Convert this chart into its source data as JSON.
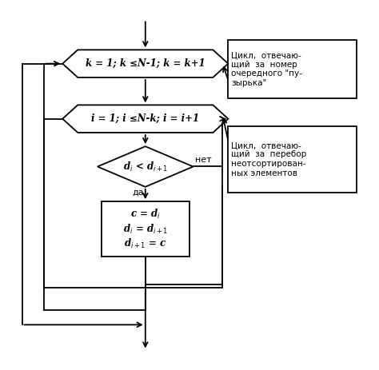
{
  "bg_color": "#ffffff",
  "line_color": "#000000",
  "note1_text": "Цикл,  отвечаю-\nщий  за  номер\nочередного \"пу-\nзырька\"",
  "note2_text": "Цикл,  отвечаю-\nщий  за  перебор\nнеотсортирован-\nных элементов",
  "yes_label": "да",
  "no_label": "нет"
}
